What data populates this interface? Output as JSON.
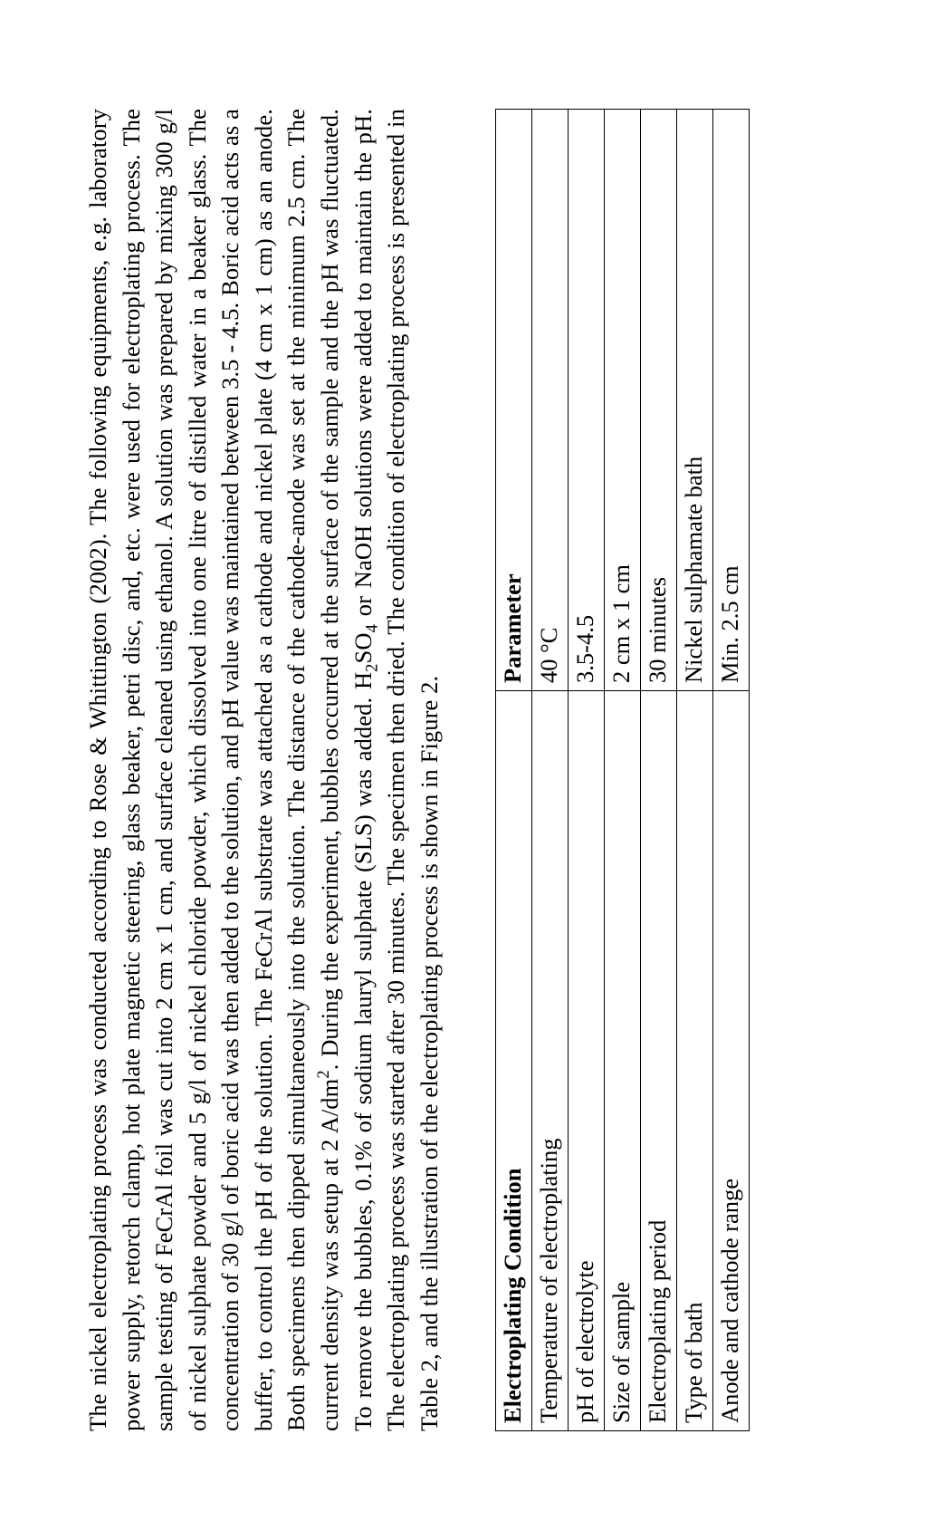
{
  "body_paragraph_html": "The nickel electroplating process was conducted according to Rose &amp; Whittington (2002). The following equipments, e.g. laboratory power supply, retorch clamp, hot plate magnetic steering, glass beaker, petri disc, and, etc. were used for electroplating process. The sample testing of FeCrAl foil was cut into 2 cm x 1 cm, and surface cleaned using ethanol. A solution was prepared by mixing 300 g/l of nickel sulphate powder and 5 g/l of nickel chloride powder, which dissolved into one litre of distilled water in a beaker glass. The concentration of 30 g/l of boric acid was then added to the solution, and pH value was maintained between 3.5 - 4.5. Boric acid acts as a buffer, to control the pH of the solution. The FeCrAl substrate was attached as a cathode and nickel plate (4 cm x 1 cm) as an anode. Both specimens then dipped simultaneously into the solution. The distance of the cathode-anode was set at the minimum 2.5 cm. The current density was setup at 2 A/dm<span class=\"sup\">2</span>. During the experiment, bubbles occurred at the surface of the sample and the pH was fluctuated. To remove the bubbles, 0.1% of sodium lauryl sulphate (SLS) was added. H<span class=\"sub\">2</span>SO<span class=\"sub\">4</span> or NaOH solutions were added to maintain the pH. The electroplating process was started after 30 minutes. The specimen then dried. The condition of electroplating process is presented in Table 2, and the illustration of the electroplating process is shown in Figure 2.",
  "table": {
    "header_left": "Electroplating Condition",
    "header_right": "Parameter",
    "rows": [
      {
        "condition": "Temperature of electroplating",
        "parameter": "40 °C"
      },
      {
        "condition": "pH of electrolyte",
        "parameter": "3.5-4.5"
      },
      {
        "condition": "Size of sample",
        "parameter": "2 cm x 1 cm"
      },
      {
        "condition": "Electroplating period",
        "parameter": "30 minutes"
      },
      {
        "condition": "Type of bath",
        "parameter": "Nickel sulphamate bath"
      },
      {
        "condition": "Anode and cathode range",
        "parameter": "Min. 2.5 cm"
      }
    ]
  }
}
